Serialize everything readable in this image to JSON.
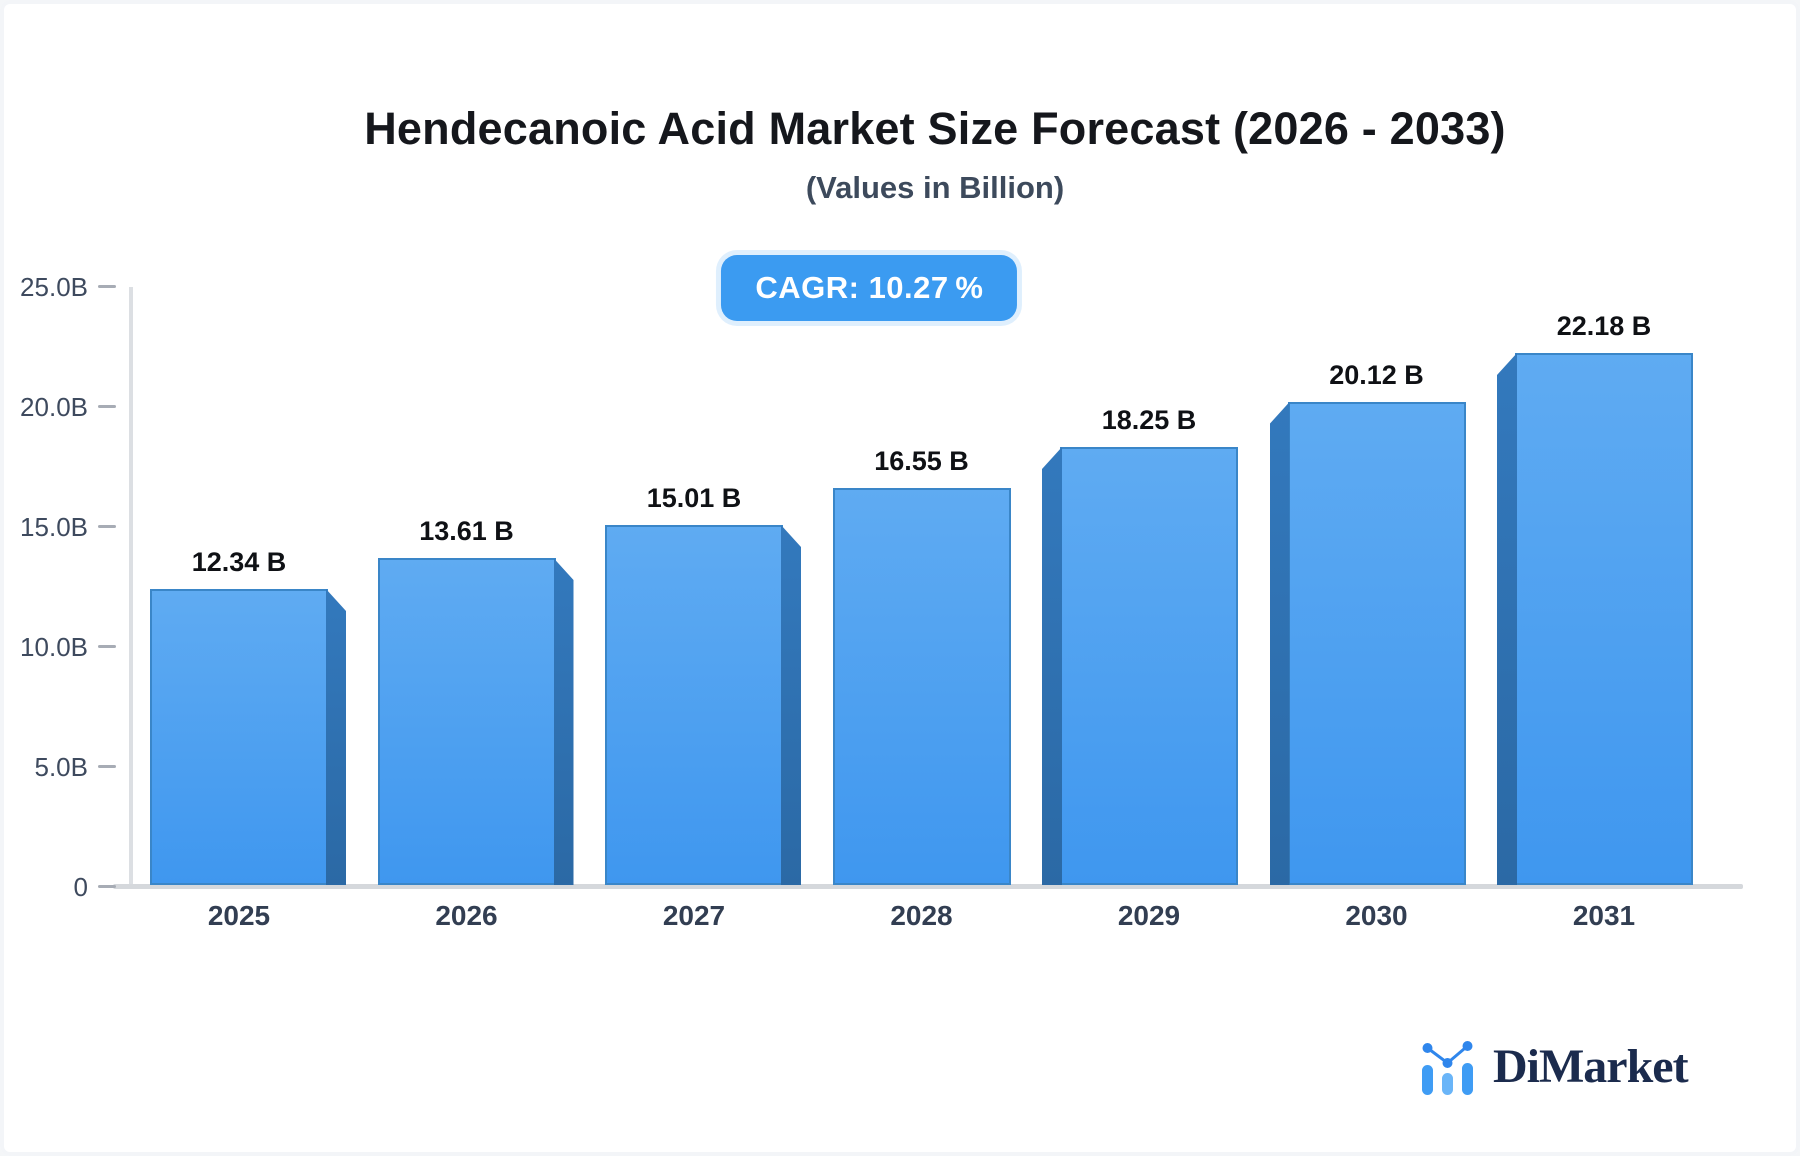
{
  "chart_data": {
    "type": "bar",
    "title": "Hendecanoic Acid Market Size Forecast (2026 - 2033)",
    "subtitle": "(Values in Billion)",
    "cagr_label": "CAGR: 10.27 %",
    "categories": [
      "2025",
      "2026",
      "2027",
      "2028",
      "2029",
      "2030",
      "2031"
    ],
    "values": [
      12.34,
      13.61,
      15.01,
      16.55,
      18.25,
      20.12,
      22.18
    ],
    "value_labels": [
      "12.34 B",
      "13.61 B",
      "15.01 B",
      "16.55 B",
      "18.25 B",
      "20.12 B",
      "22.18 B"
    ],
    "ylim": [
      0,
      25
    ],
    "yticks": [
      {
        "value": 25,
        "label": "25.0B"
      },
      {
        "value": 20,
        "label": "20.0B"
      },
      {
        "value": 15,
        "label": "15.0B"
      },
      {
        "value": 10,
        "label": "10.0B"
      },
      {
        "value": 5,
        "label": "5.0B"
      },
      {
        "value": 0,
        "label": "0"
      }
    ],
    "grid": false,
    "legend": "none",
    "bar_effect": "3d-extruded-toward-center"
  },
  "footer": {
    "logo_text": "DiMarket"
  },
  "style": {
    "bar_face_top": "#5FABF2",
    "bar_face_bottom": "#3F97EF",
    "bar_side_top": "#3379BD",
    "bar_side_bottom": "#2B69A5",
    "bar_border": "#3A86C8",
    "badge_bg": "#3B9BF1",
    "badge_text": "#FFFFFF",
    "badge_ring": "rgba(59,155,241,0.16)",
    "title_color": "#15171C",
    "subtitle_color": "#3D4A5C",
    "axis_text": "#3E4A5E",
    "year_text": "#323E52",
    "value_text": "#0F1115",
    "tick_mark": "#A7ACB5",
    "axis_line": "#DCDFE3",
    "baseline": "#D5D8DC",
    "logo_navy": "#1B2B4D",
    "logo_blue": "#3F9CF4",
    "logo_blue_light": "#6AB5F8",
    "logo_blue_dark": "#2F86EC",
    "frame": "#F3F5F8"
  }
}
